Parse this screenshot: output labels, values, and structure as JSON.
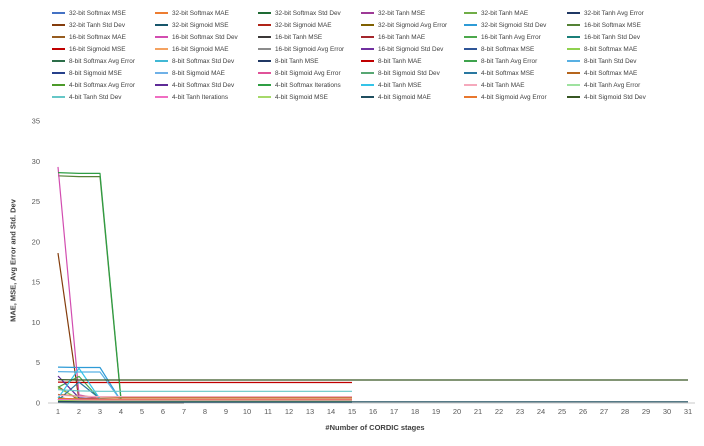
{
  "chart_data": {
    "type": "line",
    "title": "",
    "xlabel": "#Number of CORDIC stages",
    "ylabel": "MAE, MSE, Avg Error and Std. Dev",
    "x": [
      1,
      2,
      3,
      4,
      5,
      6,
      7,
      8,
      9,
      10,
      11,
      12,
      13,
      14,
      15,
      16,
      17,
      18,
      19,
      20,
      21,
      22,
      23,
      24,
      25,
      26,
      27,
      28,
      29,
      30,
      31
    ],
    "xlim": [
      1,
      31
    ],
    "ylim": [
      0,
      35
    ],
    "yticks": [
      0,
      5,
      10,
      15,
      20,
      25,
      30,
      35
    ],
    "grid": false,
    "legend_position": "top",
    "series": [
      {
        "name": "32-bit  Softmax MSE",
        "color": "#4472C4",
        "values": [
          0.08,
          0.06,
          0.05,
          0.05,
          0.05,
          0.05,
          0.05
        ]
      },
      {
        "name": "32-bit  Softmax MAE",
        "color": "#ED7D31",
        "values": [
          0.55,
          0.18,
          0.12,
          0.1,
          0.1,
          0.1,
          0.1
        ]
      },
      {
        "name": "32-bit  Softmax Std Dev",
        "color": "#1E6B34",
        "values": [
          0.7,
          0.25,
          0.15,
          0.12,
          0.12,
          0.12,
          0.12
        ]
      },
      {
        "name": "32-bit  Tanh MSE",
        "color": "#9E3A96",
        "values": [
          0.1,
          0.06,
          0.05,
          0.05,
          0.05,
          0.05,
          0.05
        ]
      },
      {
        "name": "32-bit  Tanh MAE",
        "color": "#70AD47",
        "values": [
          0.3,
          0.15,
          0.1,
          0.1,
          0.1,
          0.1,
          0.1
        ]
      },
      {
        "name": "32-bit  Tanh Avg Error",
        "color": "#1F3864",
        "values": [
          0.12,
          0.08,
          0.06,
          0.05,
          0.05,
          0.05,
          0.05
        ]
      },
      {
        "name": "32-bit  Tanh Std Dev",
        "color": "#843C0C",
        "values": [
          18.6,
          0.35,
          0.25,
          0.2,
          0.2,
          0.2,
          0.2
        ]
      },
      {
        "name": "32-bit  Sigmoid MSE",
        "color": "#17566B",
        "values": [
          0.07,
          0.05,
          0.05,
          0.05,
          0.05,
          0.05,
          0.05
        ]
      },
      {
        "name": "32-bit  Sigmoid MAE",
        "color": "#B02418",
        "values": [
          0.2,
          0.12,
          0.1,
          0.1,
          0.1,
          0.1,
          0.1
        ]
      },
      {
        "name": "32-bit  Sigmoid Avg Error",
        "color": "#7F6000",
        "values": [
          0.1,
          0.07,
          0.06,
          0.05,
          0.05,
          0.05,
          0.05
        ]
      },
      {
        "name": "32-bit  Sigmoid Std Dev",
        "color": "#2E9BD6",
        "values": [
          4.45,
          4.4,
          4.4,
          0.25,
          0.18,
          0.16,
          0.15
        ]
      },
      {
        "name": "16-bit  Softmax MSE",
        "color": "#548235",
        "values": [
          28.2,
          28.1,
          28.1,
          0.3,
          0.25,
          0.25,
          0.25
        ]
      },
      {
        "name": "16-bit  Softmax MAE",
        "color": "#975C1F",
        "values": [
          2.05,
          0.35,
          0.25,
          0.22,
          0.2,
          0.2,
          0.2
        ]
      },
      {
        "name": "16-bit  Softmax Std Dev",
        "color": "#D24DB0",
        "values": [
          29.3,
          1.0,
          0.5,
          0.38,
          0.33,
          0.3,
          0.3,
          0.3,
          0.3,
          0.3,
          0.3,
          0.3,
          0.3,
          0.3,
          0.3
        ]
      },
      {
        "name": "16-bit  Tanh MSE",
        "color": "#3B3838",
        "values": [
          0.15,
          0.1,
          0.08,
          0.07,
          0.07,
          0.07,
          0.07
        ]
      },
      {
        "name": "16-bit  Tanh MAE",
        "color": "#A4262C",
        "values": [
          0.45,
          0.3,
          0.28,
          0.27,
          0.27,
          0.27,
          0.27
        ]
      },
      {
        "name": "16-bit  Tanh Avg Error",
        "color": "#4CA84C",
        "values": [
          1.95,
          3.3,
          0.45,
          0.32,
          0.3,
          0.3,
          0.3
        ]
      },
      {
        "name": "16-bit  Tanh Std Dev",
        "color": "#1B7F79",
        "values": [
          0.3,
          0.22,
          0.2,
          0.2,
          0.2,
          0.2,
          0.2
        ]
      },
      {
        "name": "16-bit  Sigmoid MSE",
        "color": "#C00000",
        "values": [
          0.12,
          0.09,
          0.08,
          0.08,
          0.08,
          0.08,
          0.08
        ]
      },
      {
        "name": "16-bit  Sigmoid MAE",
        "color": "#F4A261",
        "values": [
          0.4,
          0.32,
          0.3,
          0.3,
          0.3,
          0.3,
          0.3
        ]
      },
      {
        "name": "16-bit  Sigmoid Avg Error",
        "color": "#8C8C8C",
        "values": [
          0.08,
          0.06,
          0.05,
          0.05,
          0.05,
          0.05,
          0.05
        ]
      },
      {
        "name": "16-bit  Sigmoid Std Dev",
        "color": "#7030A0",
        "values": [
          0.5,
          0.35,
          0.28,
          0.25,
          0.25,
          0.25,
          0.25
        ]
      },
      {
        "name": "8-bit  Softmax MSE",
        "color": "#2F5597",
        "values": [
          0.6,
          0.45,
          0.4,
          0.36,
          0.35,
          0.35,
          0.35,
          0.35,
          0.35,
          0.35,
          0.35,
          0.35,
          0.35,
          0.35,
          0.35
        ]
      },
      {
        "name": "8-bit  Softmax MAE",
        "color": "#8FD14F",
        "values": [
          1.85,
          0.55,
          0.45,
          0.4,
          0.4,
          0.4,
          0.4,
          0.4,
          0.4,
          0.4,
          0.4,
          0.4,
          0.4,
          0.4,
          0.4
        ]
      },
      {
        "name": "8-bit  Softmax Avg Error",
        "color": "#2C6E49",
        "values": [
          0.25,
          0.2,
          0.18,
          0.17,
          0.17,
          0.17,
          0.17,
          0.17,
          0.17,
          0.17,
          0.17,
          0.17,
          0.17,
          0.17,
          0.17
        ]
      },
      {
        "name": "8-bit  Softmax Std Dev",
        "color": "#41B8D5",
        "values": [
          0.55,
          0.5,
          0.5,
          0.5,
          0.5,
          0.5,
          0.5,
          0.5,
          0.5,
          0.5,
          0.5,
          0.5,
          0.5,
          0.5,
          0.5
        ]
      },
      {
        "name": "8-bit  Tanh MSE",
        "color": "#203864",
        "values": [
          0.18,
          0.14,
          0.12,
          0.12,
          0.12,
          0.12,
          0.12,
          0.12,
          0.12,
          0.12,
          0.12,
          0.12,
          0.12,
          0.12,
          0.12
        ]
      },
      {
        "name": "8-bit  Tanh MAE",
        "color": "#C00000",
        "values": [
          2.6,
          2.55,
          2.55,
          2.55,
          2.55,
          2.55,
          2.55,
          2.55,
          2.55,
          2.55,
          2.55,
          2.55,
          2.55,
          2.55,
          2.55
        ]
      },
      {
        "name": "8-bit  Tanh Avg Error",
        "color": "#3FA34D",
        "values": [
          0.28,
          0.24,
          0.22,
          0.22,
          0.22,
          0.22,
          0.22,
          0.22,
          0.22,
          0.22,
          0.22,
          0.22,
          0.22,
          0.22,
          0.22
        ]
      },
      {
        "name": "8-bit  Tanh Std Dev",
        "color": "#58B0E3",
        "values": [
          3.9,
          3.85,
          3.85,
          0.3,
          0.25,
          0.22,
          0.2,
          0.2,
          0.2,
          0.2,
          0.2,
          0.2,
          0.2,
          0.2,
          0.2
        ]
      },
      {
        "name": "8-bit  Sigmoid MSE",
        "color": "#26408B",
        "values": [
          0.14,
          0.1,
          0.1,
          0.1,
          0.1,
          0.1,
          0.1,
          0.1,
          0.1,
          0.1,
          0.1,
          0.1,
          0.1,
          0.1,
          0.1
        ]
      },
      {
        "name": "8-bit  Sigmoid MAE",
        "color": "#6FB1E7",
        "values": [
          0.4,
          0.35,
          0.33,
          0.33,
          0.33,
          0.33,
          0.33,
          0.33,
          0.33,
          0.33,
          0.33,
          0.33,
          0.33,
          0.33,
          0.33
        ]
      },
      {
        "name": "8-bit  Sigmoid Avg Error",
        "color": "#E05299",
        "values": [
          0.22,
          0.2,
          0.18,
          0.18,
          0.18,
          0.18,
          0.18,
          0.18,
          0.18,
          0.18,
          0.18,
          0.18,
          0.18,
          0.18,
          0.18
        ]
      },
      {
        "name": "8-bit  Sigmoid Std Dev",
        "color": "#57A773",
        "values": [
          0.5,
          0.46,
          0.45,
          0.45,
          0.45,
          0.45,
          0.45,
          0.45,
          0.45,
          0.45,
          0.45,
          0.45,
          0.45,
          0.45,
          0.45
        ]
      },
      {
        "name": "4-bit  Softmax MSE",
        "color": "#2978A0",
        "values": [
          0.35,
          2.6,
          0.55,
          0.45,
          0.42,
          0.4,
          0.4,
          0.4,
          0.4,
          0.4,
          0.4,
          0.4,
          0.4,
          0.4,
          0.4
        ]
      },
      {
        "name": "4-bit  Softmax MAE",
        "color": "#B5651D",
        "values": [
          1.05,
          0.85,
          0.75,
          0.7,
          0.7,
          0.7,
          0.7,
          0.7,
          0.7,
          0.7,
          0.7,
          0.7,
          0.7,
          0.7,
          0.7
        ]
      },
      {
        "name": "4-bit Softmax Avg Error",
        "color": "#4C9A2A",
        "values": [
          0.32,
          0.28,
          0.27,
          0.27,
          0.27,
          0.27,
          0.27,
          0.27,
          0.27,
          0.27,
          0.27,
          0.27,
          0.27,
          0.27,
          0.27
        ]
      },
      {
        "name": "4-bit Softmax Std Dev",
        "color": "#5E2B97",
        "values": [
          3.35,
          0.65,
          0.5,
          0.45,
          0.45,
          0.45,
          0.45,
          0.45,
          0.45,
          0.45,
          0.45,
          0.45,
          0.45,
          0.45,
          0.45
        ]
      },
      {
        "name": "4-bit Softmax Iterations",
        "color": "#2F9E44",
        "values": [
          28.6,
          28.5,
          28.5,
          0.5,
          0.42,
          0.4,
          0.4
        ]
      },
      {
        "name": "4-bit Tanh MSE",
        "color": "#35C4E8",
        "values": [
          0.6,
          4.3,
          0.5,
          0.42,
          0.4,
          0.4,
          0.4,
          0.4,
          0.4,
          0.4,
          0.4,
          0.4,
          0.4,
          0.4,
          0.4
        ]
      },
      {
        "name": "4-bit Tanh MAE",
        "color": "#F5A9BC",
        "values": [
          0.95,
          0.85,
          0.8,
          0.8,
          0.8,
          0.8,
          0.8,
          0.8,
          0.8,
          0.8,
          0.8,
          0.8,
          0.8,
          0.8,
          0.8
        ]
      },
      {
        "name": "4-bit Tanh Avg Error",
        "color": "#9FE2A0",
        "values": [
          0.18,
          0.15,
          0.14,
          0.14,
          0.14,
          0.14,
          0.14,
          0.14,
          0.14,
          0.14,
          0.14,
          0.14,
          0.14,
          0.14,
          0.14
        ]
      },
      {
        "name": "4-bit Tanh Std Dev",
        "color": "#66C7C7",
        "values": [
          1.65,
          1.5,
          1.45,
          1.45,
          1.45,
          1.45,
          1.45,
          1.45,
          1.45,
          1.45,
          1.45,
          1.45,
          1.45,
          1.45,
          1.45
        ]
      },
      {
        "name": "4-bit Tanh Iterations",
        "color": "#F06EC2",
        "values": [
          0.45,
          0.4,
          0.38,
          0.38,
          0.38,
          0.38,
          0.38,
          0.38,
          0.38,
          0.38,
          0.38,
          0.38,
          0.38,
          0.38,
          0.38
        ]
      },
      {
        "name": "4-bit Sigmoid MSE",
        "color": "#A6D96A",
        "values": [
          0.28,
          0.25,
          0.24,
          0.24,
          0.24,
          0.24,
          0.24,
          0.24,
          0.24,
          0.24,
          0.24,
          0.24,
          0.24,
          0.24,
          0.24
        ]
      },
      {
        "name": "4-bit Sigmoid MAE",
        "color": "#1F4E5F",
        "values": [
          0.18,
          0.16,
          0.15,
          0.15,
          0.15,
          0.15,
          0.15,
          0.15,
          0.15,
          0.15,
          0.15,
          0.15,
          0.15,
          0.15,
          0.15,
          0.15,
          0.15,
          0.15,
          0.15,
          0.15,
          0.15,
          0.15,
          0.15,
          0.15,
          0.15,
          0.15,
          0.15,
          0.15,
          0.15,
          0.15,
          0.15
        ]
      },
      {
        "name": "4-bit Sigmoid Avg Error",
        "color": "#E8772E",
        "values": [
          0.58,
          0.52,
          0.5,
          0.5,
          0.5,
          0.5,
          0.5,
          0.5,
          0.5,
          0.5,
          0.5,
          0.5,
          0.5,
          0.5,
          0.5
        ]
      },
      {
        "name": "4-bit Sigmoid Std Dev",
        "color": "#375623",
        "values": [
          2.9,
          2.85,
          2.85,
          2.85,
          2.85,
          2.85,
          2.85,
          2.85,
          2.85,
          2.85,
          2.85,
          2.85,
          2.85,
          2.85,
          2.85,
          2.85,
          2.85,
          2.85,
          2.85,
          2.85,
          2.85,
          2.85,
          2.85,
          2.85,
          2.85,
          2.85,
          2.85,
          2.85,
          2.85,
          2.85,
          2.85
        ]
      }
    ]
  }
}
